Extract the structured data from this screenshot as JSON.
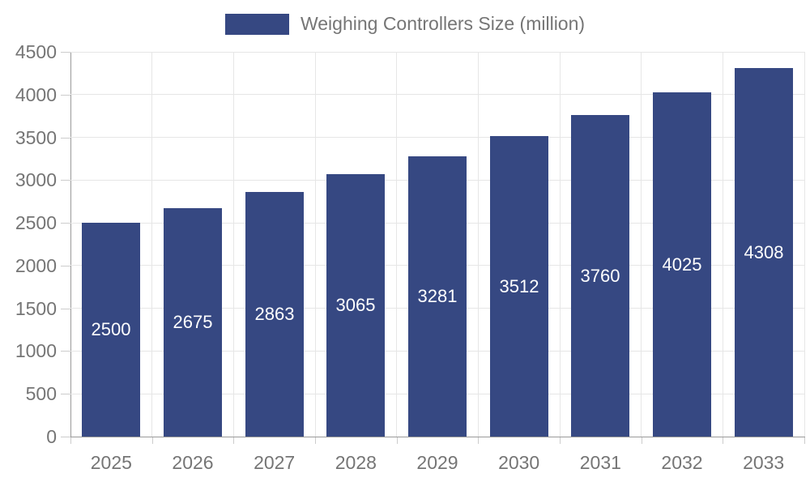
{
  "legend": {
    "label": "Weighing Controllers Size (million)"
  },
  "colors": {
    "bar": "#364882",
    "grid": "#e6e6e6",
    "axis": "#9a9a9a",
    "tick": "#cccccc",
    "text": "#757575",
    "value_label": "#ffffff"
  },
  "chart_data": {
    "type": "bar",
    "title": "Weighing Controllers Size (million)",
    "series_name": "Weighing Controllers Size (million)",
    "categories": [
      "2025",
      "2026",
      "2027",
      "2028",
      "2029",
      "2030",
      "2031",
      "2032",
      "2033"
    ],
    "values": [
      2500,
      2675,
      2863,
      3065,
      3281,
      3512,
      3760,
      4025,
      4308
    ],
    "xlabel": "",
    "ylabel": "",
    "ylim": [
      0,
      4500
    ],
    "yticks": [
      0,
      500,
      1000,
      1500,
      2000,
      2500,
      3000,
      3500,
      4000,
      4500
    ],
    "grid": true,
    "legend_position": "top",
    "value_labels_position": "inside-center",
    "bar_color": "#364882"
  }
}
